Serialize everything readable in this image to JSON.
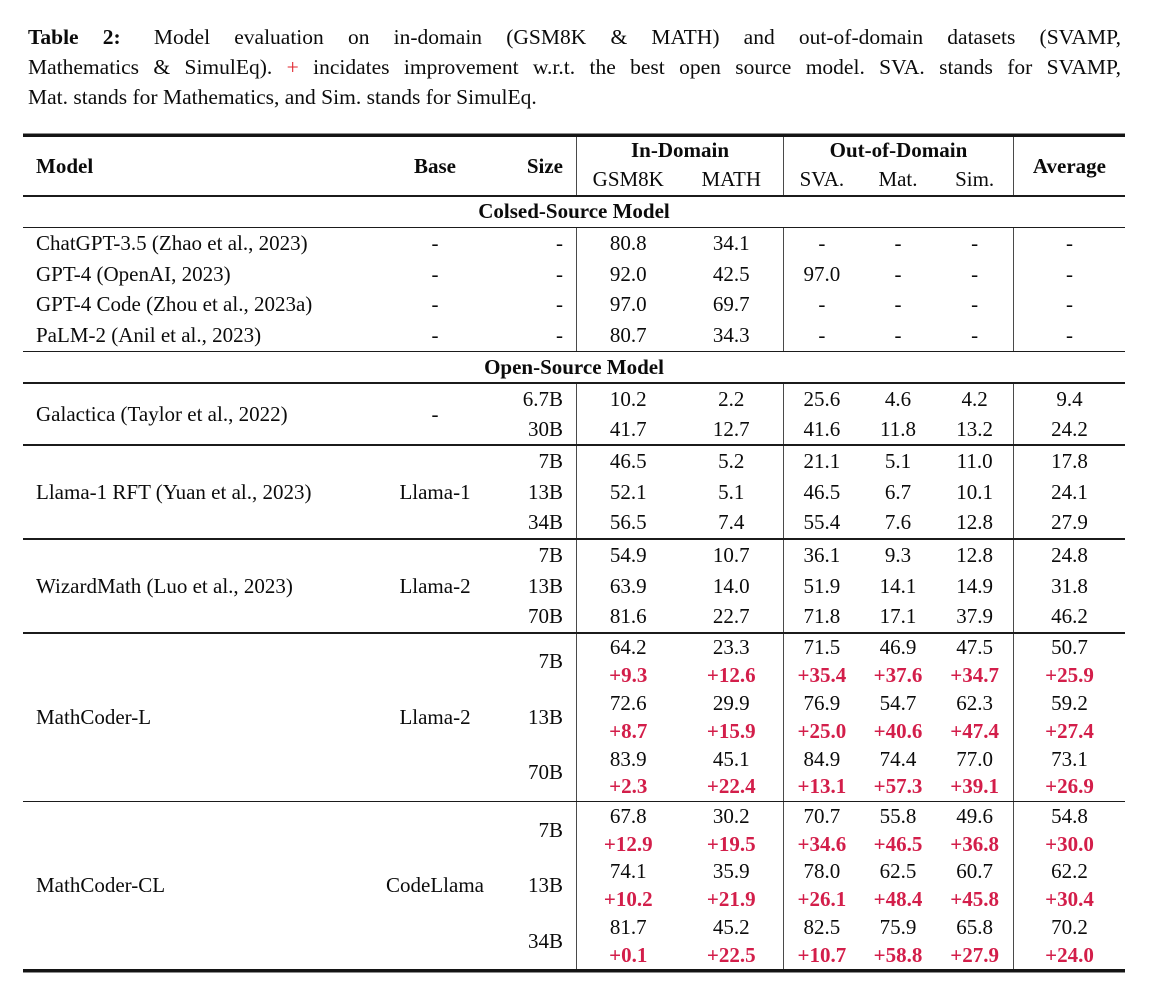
{
  "colors": {
    "delta_red": "#d31e4a",
    "caption_plus_red": "#e0242c",
    "line_dark": "#1b1b1b"
  },
  "caption": {
    "label": "Table 2:",
    "line1_rest": "Model evaluation on in-domain (GSM8K & MATH) and out-of-domain datasets (SVAMP,",
    "line2_before": "Mathematics & SimulEq). ",
    "plus": "+",
    "line2_after": " incidates improvement w.r.t. the best open source model. SVA. stands for SVAMP,",
    "line3": "Mat. stands for Mathematics, and Sim. stands for SimulEq."
  },
  "table": {
    "header": {
      "model": "Model",
      "base": "Base",
      "size": "Size",
      "in_domain": "In-Domain",
      "out_domain": "Out-of-Domain",
      "average": "Average",
      "sub": [
        "GSM8K",
        "MATH",
        "SVA.",
        "Mat.",
        "Sim."
      ]
    },
    "segments": [
      {
        "kind": "banner",
        "label": "Colsed-Source Model"
      },
      {
        "kind": "list",
        "rows": [
          {
            "model": "ChatGPT-3.5 (Zhao et al., 2023)",
            "base": "-",
            "size": "-",
            "values": [
              "80.8",
              "34.1",
              "-",
              "-",
              "-",
              "-"
            ]
          },
          {
            "model": "GPT-4 (OpenAI, 2023)",
            "base": "-",
            "size": "-",
            "values": [
              "92.0",
              "42.5",
              "97.0",
              "-",
              "-",
              "-"
            ]
          },
          {
            "model": "GPT-4 Code (Zhou et al., 2023a)",
            "base": "-",
            "size": "-",
            "values": [
              "97.0",
              "69.7",
              "-",
              "-",
              "-",
              "-"
            ]
          },
          {
            "model": "PaLM-2 (Anil et al., 2023)",
            "base": "-",
            "size": "-",
            "values": [
              "80.7",
              "34.3",
              "-",
              "-",
              "-",
              "-"
            ]
          }
        ]
      },
      {
        "kind": "banner",
        "label": "Open-Source Model"
      },
      {
        "kind": "group",
        "model": "Galactica (Taylor et al., 2022)",
        "base": "-",
        "rows": [
          {
            "size": "6.7B",
            "values": [
              "10.2",
              "2.2",
              "25.6",
              "4.6",
              "4.2",
              "9.4"
            ]
          },
          {
            "size": "30B",
            "values": [
              "41.7",
              "12.7",
              "41.6",
              "11.8",
              "13.2",
              "24.2"
            ]
          }
        ]
      },
      {
        "kind": "group",
        "model": "Llama-1 RFT (Yuan et al., 2023)",
        "base": "Llama-1",
        "rows": [
          {
            "size": "7B",
            "values": [
              "46.5",
              "5.2",
              "21.1",
              "5.1",
              "11.0",
              "17.8"
            ]
          },
          {
            "size": "13B",
            "values": [
              "52.1",
              "5.1",
              "46.5",
              "6.7",
              "10.1",
              "24.1"
            ]
          },
          {
            "size": "34B",
            "values": [
              "56.5",
              "7.4",
              "55.4",
              "7.6",
              "12.8",
              "27.9"
            ]
          }
        ]
      },
      {
        "kind": "group",
        "model": "WizardMath (Luo et al., 2023)",
        "base": "Llama-2",
        "rows": [
          {
            "size": "7B",
            "values": [
              "54.9",
              "10.7",
              "36.1",
              "9.3",
              "12.8",
              "24.8"
            ]
          },
          {
            "size": "13B",
            "values": [
              "63.9",
              "14.0",
              "51.9",
              "14.1",
              "14.9",
              "31.8"
            ]
          },
          {
            "size": "70B",
            "values": [
              "81.6",
              "22.7",
              "71.8",
              "17.1",
              "37.9",
              "46.2"
            ]
          }
        ]
      },
      {
        "kind": "group",
        "model": "MathCoder-L",
        "base": "Llama-2",
        "rows": [
          {
            "size": "7B",
            "values": [
              "64.2",
              "23.3",
              "71.5",
              "46.9",
              "47.5",
              "50.7"
            ],
            "delta": [
              "+9.3",
              "+12.6",
              "+35.4",
              "+37.6",
              "+34.7",
              "+25.9"
            ]
          },
          {
            "size": "13B",
            "values": [
              "72.6",
              "29.9",
              "76.9",
              "54.7",
              "62.3",
              "59.2"
            ],
            "delta": [
              "+8.7",
              "+15.9",
              "+25.0",
              "+40.6",
              "+47.4",
              "+27.4"
            ]
          },
          {
            "size": "70B",
            "values": [
              "83.9",
              "45.1",
              "84.9",
              "74.4",
              "77.0",
              "73.1"
            ],
            "delta": [
              "+2.3",
              "+22.4",
              "+13.1",
              "+57.3",
              "+39.1",
              "+26.9"
            ]
          }
        ]
      },
      {
        "kind": "group",
        "model": "MathCoder-CL",
        "base": "CodeLlama",
        "rows": [
          {
            "size": "7B",
            "values": [
              "67.8",
              "30.2",
              "70.7",
              "55.8",
              "49.6",
              "54.8"
            ],
            "delta": [
              "+12.9",
              "+19.5",
              "+34.6",
              "+46.5",
              "+36.8",
              "+30.0"
            ]
          },
          {
            "size": "13B",
            "values": [
              "74.1",
              "35.9",
              "78.0",
              "62.5",
              "60.7",
              "62.2"
            ],
            "delta": [
              "+10.2",
              "+21.9",
              "+26.1",
              "+48.4",
              "+45.8",
              "+30.4"
            ]
          },
          {
            "size": "34B",
            "values": [
              "81.7",
              "45.2",
              "82.5",
              "75.9",
              "65.8",
              "70.2"
            ],
            "delta": [
              "+0.1",
              "+22.5",
              "+10.7",
              "+58.8",
              "+27.9",
              "+24.0"
            ]
          }
        ]
      }
    ]
  }
}
